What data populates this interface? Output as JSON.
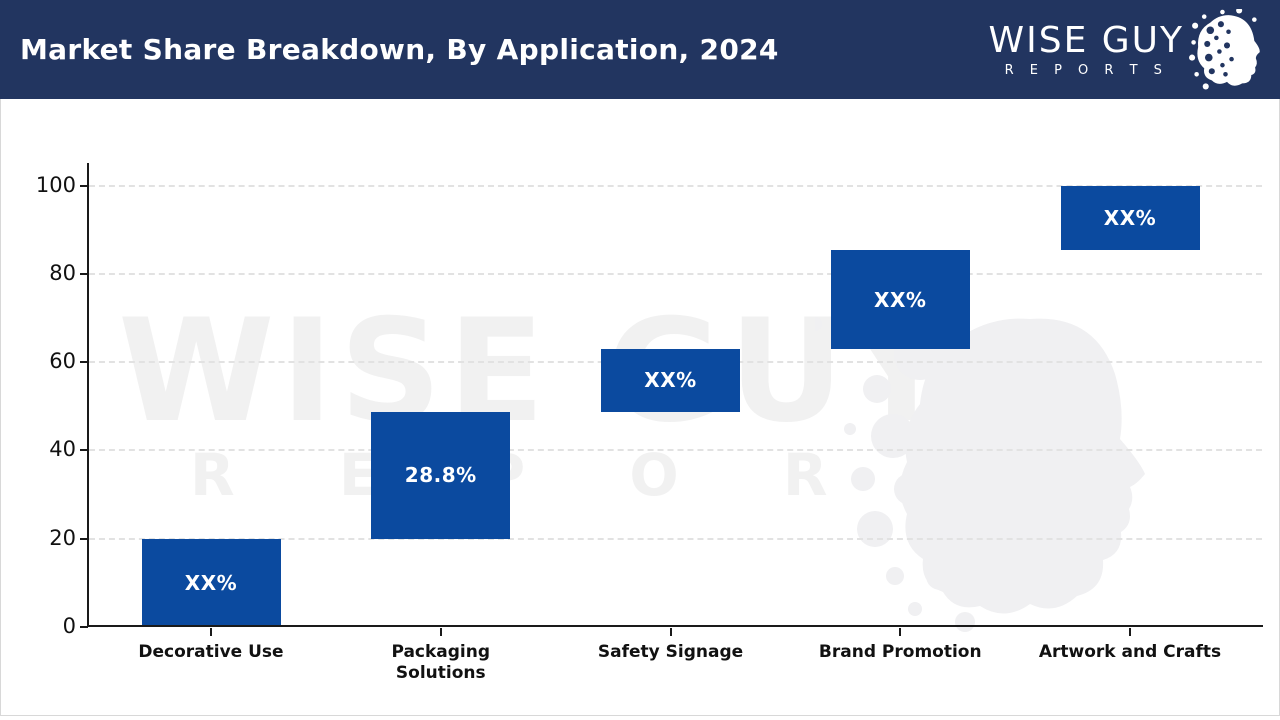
{
  "header": {
    "bg_color": "#223560",
    "title": "Market Share Breakdown, By Application, 2024",
    "logo": {
      "name_line": "WISE GUY",
      "sub_line": "R E P O R T S"
    }
  },
  "watermark": {
    "line1": "WISE GUY",
    "line2": "R E P O R T S"
  },
  "chart_data": {
    "type": "bar",
    "subtype": "waterfall",
    "title": "Market Share Breakdown, By Application, 2024",
    "categories": [
      "Decorative Use",
      "Packaging Solutions",
      "Safety Signage",
      "Brand Promotion",
      "Artwork and Crafts"
    ],
    "bars": [
      {
        "category": "Decorative Use",
        "label_lines": [
          "Decorative Use"
        ],
        "value_label": "XX%",
        "start": 0,
        "end": 20
      },
      {
        "category": "Packaging Solutions",
        "label_lines": [
          "Packaging",
          "Solutions"
        ],
        "value_label": "28.8%",
        "start": 20,
        "end": 48.8
      },
      {
        "category": "Safety Signage",
        "label_lines": [
          "Safety Signage"
        ],
        "value_label": "XX%",
        "start": 48.8,
        "end": 63
      },
      {
        "category": "Brand Promotion",
        "label_lines": [
          "Brand Promotion"
        ],
        "value_label": "XX%",
        "start": 63,
        "end": 85.4
      },
      {
        "category": "Artwork and Crafts",
        "label_lines": [
          "Artwork and Crafts"
        ],
        "value_label": "XX%",
        "start": 85.4,
        "end": 100
      }
    ],
    "y_ticks": [
      0,
      20,
      40,
      60,
      80,
      100
    ],
    "ylim": [
      0,
      105
    ],
    "bar_color": "#0b4a9f",
    "grid": "horizontal-dashed",
    "legend": "none"
  }
}
